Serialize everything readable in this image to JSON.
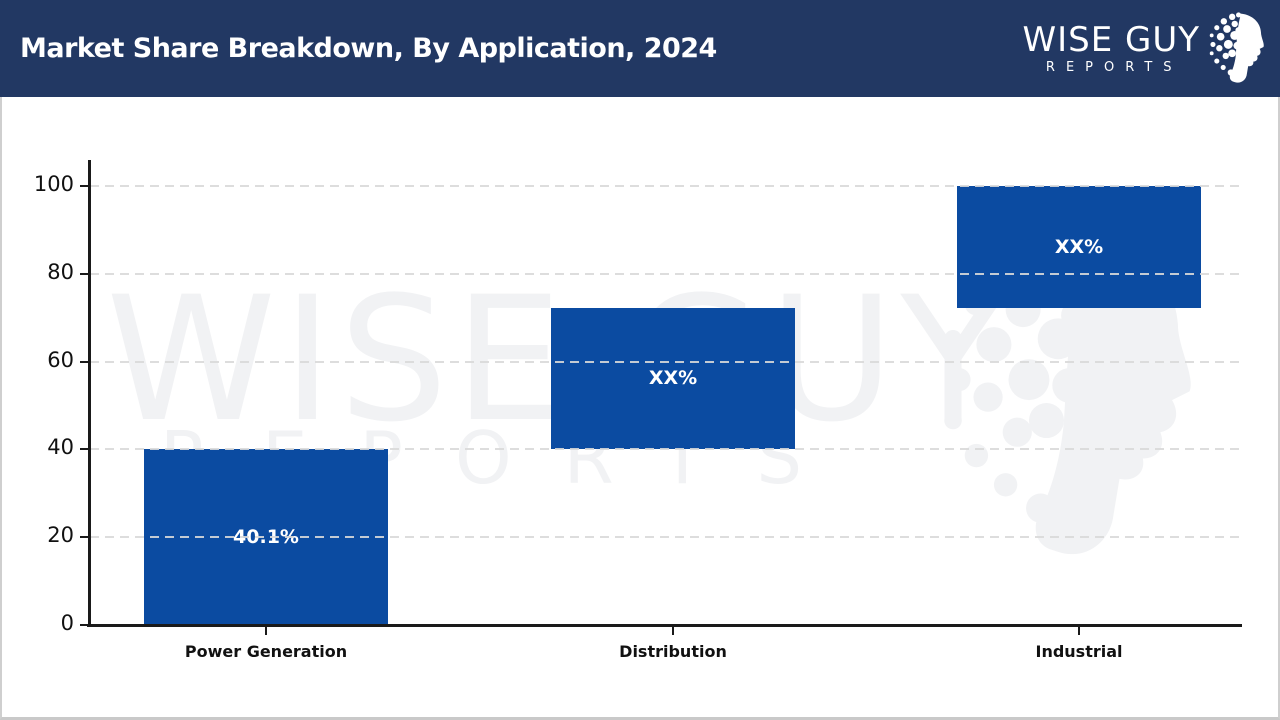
{
  "header": {
    "title": "Market Share Breakdown, By Application, 2024",
    "logo": {
      "line1": "WISE GUY",
      "line2": "REPORTS"
    }
  },
  "watermark": {
    "line1": "WISE GUY",
    "line2": "REPORTS"
  },
  "colors": {
    "header_bg": "#223863",
    "bar": "#0b4ba1",
    "bar_label": "#ffffff",
    "watermark": "#f1f2f4",
    "grid": "#d9d9d9",
    "axis": "#1a1a1a"
  },
  "chart_data": {
    "type": "bar",
    "variant": "stacked-step market share (floating segment bars)",
    "title": "Market Share Breakdown, By Application, 2024",
    "categories": [
      "Power Generation",
      "Distribution",
      "Industrial"
    ],
    "segments": [
      {
        "category": "Power Generation",
        "start": 0,
        "end": 40.1,
        "value_est": 40.1,
        "label": "40.1%"
      },
      {
        "category": "Distribution",
        "start": 40.1,
        "end": 72.2,
        "value_est": 32.1,
        "label": "XX%"
      },
      {
        "category": "Industrial",
        "start": 72.2,
        "end": 100,
        "value_est": 27.8,
        "label": "XX%"
      }
    ],
    "yticks": [
      0,
      20,
      40,
      60,
      80,
      100
    ],
    "ylim": [
      0,
      100
    ],
    "xlabel": "",
    "ylabel": "",
    "grid": "horizontal dashed, drawn over bars",
    "legend": "none"
  }
}
